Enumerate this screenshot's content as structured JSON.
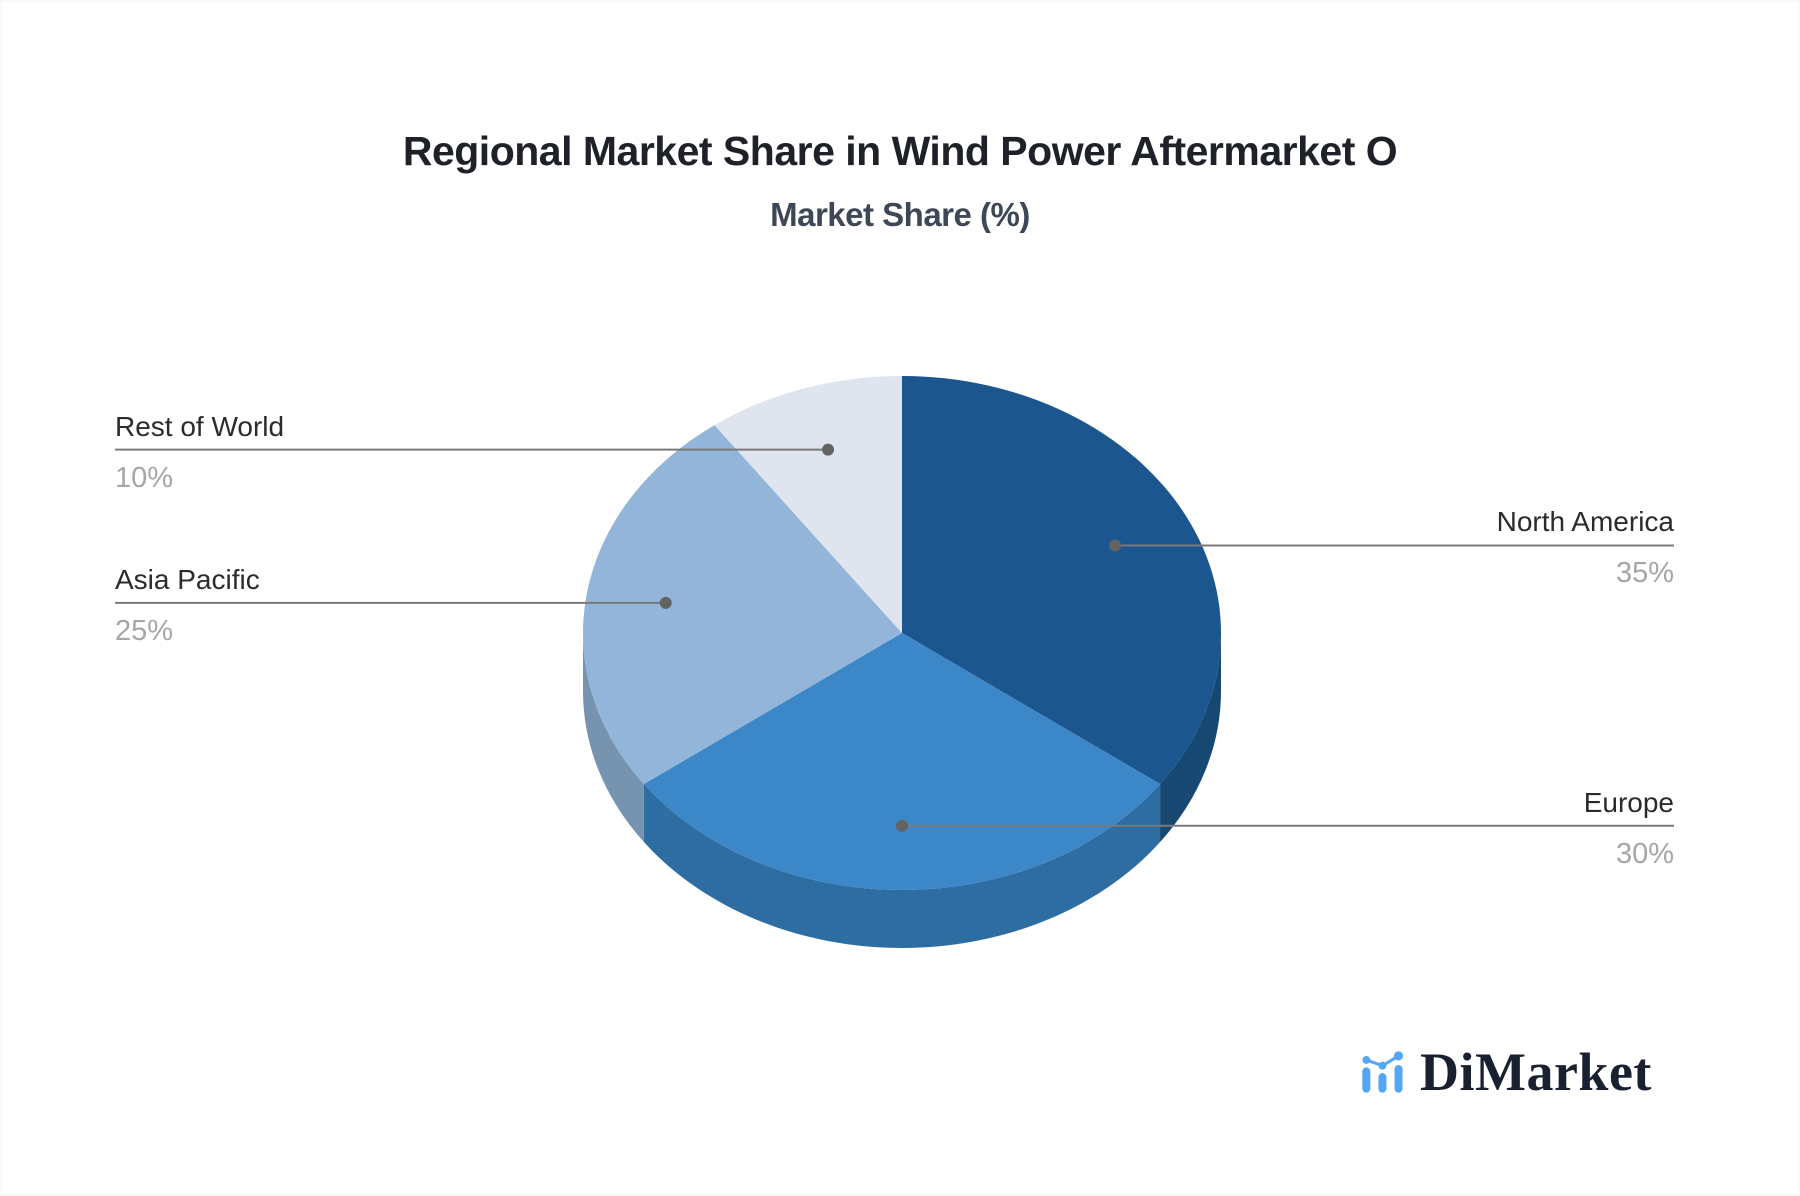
{
  "header": {
    "title": "Regional Market Share in Wind Power Aftermarket O",
    "subtitle": "Market Share (%)"
  },
  "chart_data": {
    "type": "pie",
    "style": "3d",
    "title": "Regional Market Share in Wind Power Aftermarket O",
    "subtitle": "Market Share (%)",
    "unit": "%",
    "direction": "clockwise",
    "start_angle_deg": 0,
    "legend": "none",
    "slices": [
      {
        "label": "North America",
        "value": 35,
        "display": "35%",
        "color": "#1b568f",
        "side_color": "#164872",
        "callout_side": "right"
      },
      {
        "label": "Europe",
        "value": 30,
        "display": "30%",
        "color": "#3b87c8",
        "side_color": "#2e6da1",
        "callout_side": "right"
      },
      {
        "label": "Asia Pacific",
        "value": 25,
        "display": "25%",
        "color": "#92b5d9",
        "side_color": "#7693af",
        "callout_side": "left"
      },
      {
        "label": "Rest of World",
        "value": 10,
        "display": "10%",
        "color": "#dfe5ef",
        "side_color": "#bcc6d6",
        "callout_side": "left"
      }
    ],
    "callout_line_color": "#7a7a7a",
    "callout_dot_color": "#636363",
    "label_color": "#2b2b2b",
    "value_color": "#a6a6a6"
  },
  "branding": {
    "logo_text": "DiMarket",
    "logo_icon": "bar-line-chart-icon",
    "icon_color": "#54a6f6",
    "text_color": "#19202f"
  }
}
